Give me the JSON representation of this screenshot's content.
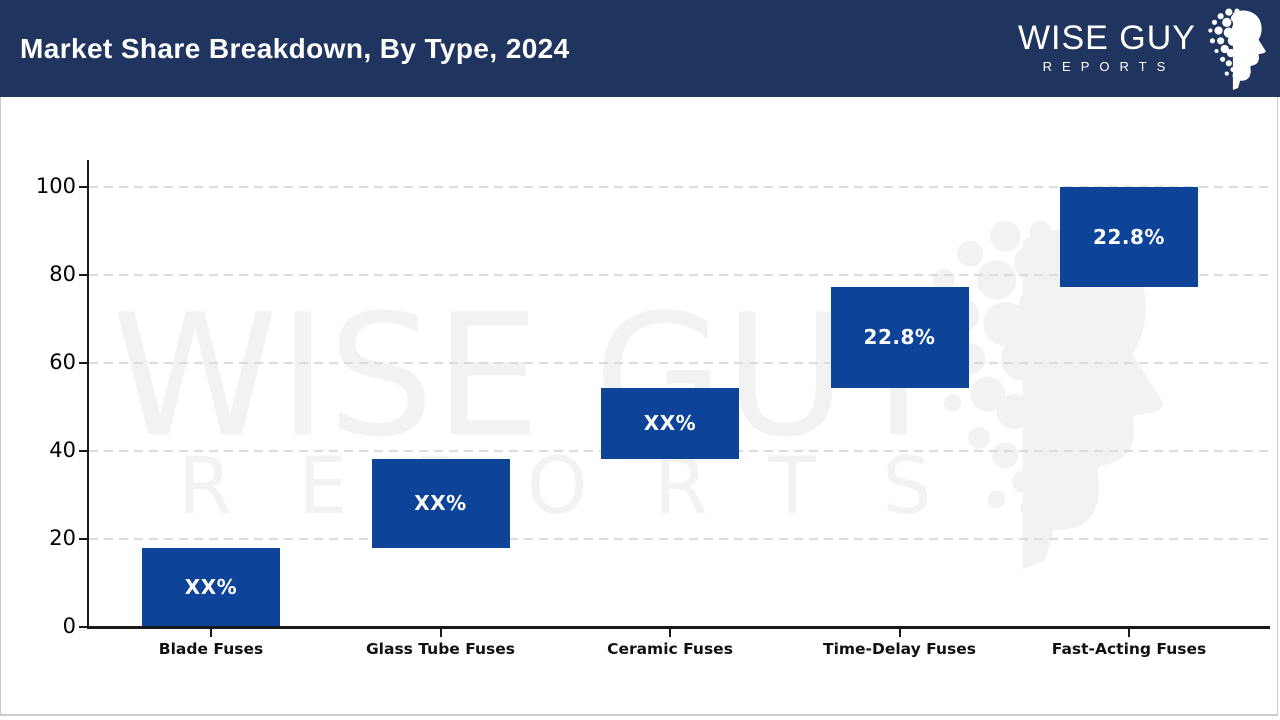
{
  "header": {
    "title": "Market Share Breakdown, By Type, 2024",
    "logo": {
      "name": "WISE GUY",
      "sub": "REPORTS"
    }
  },
  "watermark": {
    "line1": "WISE GUY",
    "line2": "REPORTS"
  },
  "chart_data": {
    "type": "bar",
    "variant": "floating-waterfall",
    "title": "Market Share Breakdown, By Type, 2024",
    "categories": [
      "Blade Fuses",
      "Glass Tube Fuses",
      "Ceramic Fuses",
      "Time-Delay Fuses",
      "Fast-Acting Fuses"
    ],
    "bars": [
      {
        "category": "Blade Fuses",
        "start": 0,
        "end": 18,
        "label": "XX%"
      },
      {
        "category": "Glass Tube Fuses",
        "start": 18,
        "end": 38.2,
        "label": "XX%"
      },
      {
        "category": "Ceramic Fuses",
        "start": 38.2,
        "end": 54.4,
        "label": "XX%"
      },
      {
        "category": "Time-Delay Fuses",
        "start": 54.4,
        "end": 77.2,
        "label": "22.8%"
      },
      {
        "category": "Fast-Acting Fuses",
        "start": 77.2,
        "end": 100,
        "label": "22.8%"
      }
    ],
    "yticks": [
      0,
      20,
      40,
      60,
      80,
      100
    ],
    "ylim": [
      0,
      100
    ],
    "xlabel": "",
    "ylabel": "",
    "grid": "horizontal-dashed",
    "legend": "none",
    "bar_color": "#0d4399",
    "bar_label_color": "#ffffff"
  }
}
